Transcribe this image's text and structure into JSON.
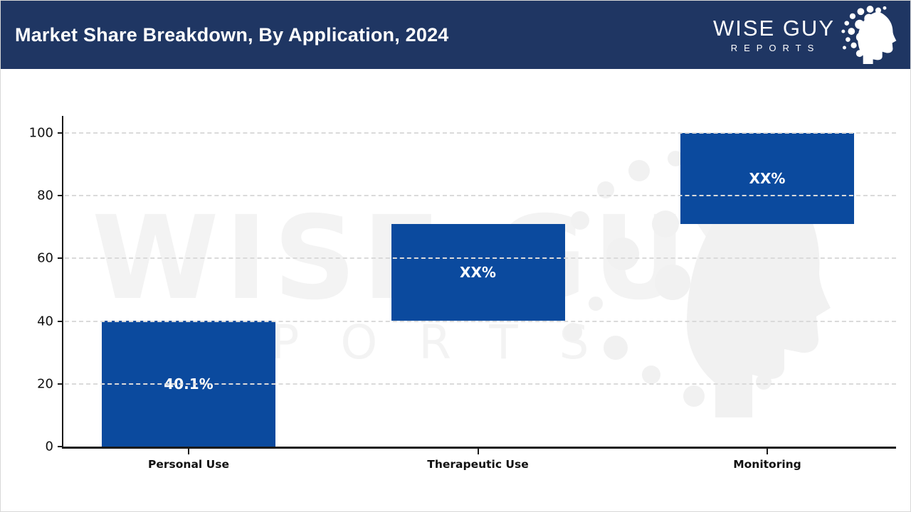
{
  "header": {
    "title": "Market Share Breakdown, By Application, 2024",
    "bg_color": "#1f3663",
    "text_color": "#ffffff",
    "logo": {
      "wordmark": "WISE GUY",
      "subtext": "REPORTS"
    }
  },
  "watermark": {
    "line1": "WISE GUY",
    "line2": "REPORTS",
    "color": "#f3f3f3"
  },
  "chart_data": {
    "type": "bar",
    "variant": "floating-segments (waterfall-style market share)",
    "title": "Market Share Breakdown, By Application, 2024",
    "categories": [
      "Personal Use",
      "Therapeutic Use",
      "Monitoring"
    ],
    "series": [
      {
        "name": "Market share (%)",
        "segments": [
          {
            "category": "Personal Use",
            "start": 0,
            "end": 40.1,
            "label": "40.1%"
          },
          {
            "category": "Therapeutic Use",
            "start": 40.1,
            "end": 71.0,
            "label": "XX%"
          },
          {
            "category": "Monitoring",
            "start": 71.0,
            "end": 100.0,
            "label": "XX%"
          }
        ]
      }
    ],
    "ylim": [
      0,
      100
    ],
    "yticks": [
      0,
      20,
      40,
      60,
      80,
      100
    ],
    "xlabel": "",
    "ylabel": "",
    "grid": "horizontal-dashed, drawn over bars",
    "legend": "none",
    "bar_color": "#0b4a9e",
    "bar_label_color": "#ffffff",
    "axis_color": "#1a1a1a",
    "gridline_color": "#dadada",
    "tick_label_color": "#111111"
  }
}
